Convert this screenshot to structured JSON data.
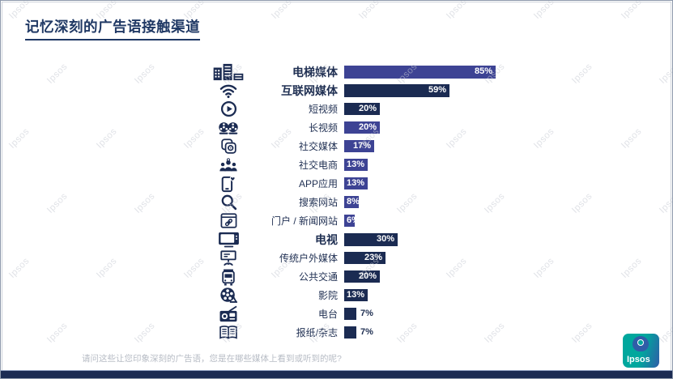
{
  "slide": {
    "title": "记忆深刻的广告语接触渠道",
    "footnote": "请问这些让您印象深刻的广告语，您是在哪些媒体上看到或听到的呢?",
    "watermark_text": "Ipsos",
    "logo_text": "Ipsos"
  },
  "colors": {
    "navy": "#1B2B52",
    "indigo": "#3D4394",
    "title": "#1F3864",
    "label": "#1F2F52",
    "bar_value_text": "#FFFFFF",
    "footnote": "#B7BCC5",
    "watermark": "#C7CBD4",
    "logo_teal": "#00A79D",
    "logo_blue": "#2F5DA8"
  },
  "chart_data": {
    "type": "bar",
    "orientation": "horizontal",
    "title": "记忆深刻的广告语接触渠道",
    "value_unit": "%",
    "xlim": [
      0,
      100
    ],
    "grid": false,
    "legend": false,
    "categories": [
      "电梯媒体",
      "互联网媒体",
      "短视频",
      "长视频",
      "社交媒体",
      "社交电商",
      "APP应用",
      "搜索网站",
      "门户 / 新闻网站",
      "电视",
      "传统户外媒体",
      "公共交通",
      "影院",
      "电台",
      "报纸/杂志"
    ],
    "values": [
      85,
      59,
      20,
      20,
      17,
      13,
      13,
      8,
      6,
      30,
      23,
      20,
      13,
      7,
      7
    ],
    "rows": [
      {
        "label": "电梯媒体",
        "value": 85,
        "value_label": "85%",
        "bold": true,
        "color": "indigo",
        "icon": "buildings-icon",
        "value_inside": true
      },
      {
        "label": "互联网媒体",
        "value": 59,
        "value_label": "59%",
        "bold": true,
        "color": "navy",
        "icon": "wifi-icon",
        "value_inside": true
      },
      {
        "label": "短视频",
        "value": 20,
        "value_label": "20%",
        "bold": false,
        "color": "navy",
        "icon": "play-icon",
        "value_inside": true
      },
      {
        "label": "长视频",
        "value": 20,
        "value_label": "20%",
        "bold": false,
        "color": "indigo",
        "icon": "film-reels-icon",
        "value_inside": true
      },
      {
        "label": "社交媒体",
        "value": 17,
        "value_label": "17%",
        "bold": false,
        "color": "indigo",
        "icon": "social-apps-icon",
        "value_inside": true
      },
      {
        "label": "社交电商",
        "value": 13,
        "value_label": "13%",
        "bold": false,
        "color": "indigo",
        "icon": "people-group-icon",
        "value_inside": true
      },
      {
        "label": "APP应用",
        "value": 13,
        "value_label": "13%",
        "bold": false,
        "color": "indigo",
        "icon": "phone-heart-icon",
        "value_inside": true
      },
      {
        "label": "搜索网站",
        "value": 8,
        "value_label": "8%",
        "bold": false,
        "color": "indigo",
        "icon": "search-icon",
        "value_inside": true
      },
      {
        "label": "门户 / 新闻网站",
        "value": 6,
        "value_label": "6%",
        "bold": false,
        "color": "indigo",
        "icon": "browser-link-icon",
        "value_inside": true
      },
      {
        "label": "电视",
        "value": 30,
        "value_label": "30%",
        "bold": true,
        "color": "navy",
        "icon": "tv-icon",
        "value_inside": true
      },
      {
        "label": "传统户外媒体",
        "value": 23,
        "value_label": "23%",
        "bold": false,
        "color": "navy",
        "icon": "billboard-icon",
        "value_inside": true
      },
      {
        "label": "公共交通",
        "value": 20,
        "value_label": "20%",
        "bold": false,
        "color": "navy",
        "icon": "bus-icon",
        "value_inside": true
      },
      {
        "label": "影院",
        "value": 13,
        "value_label": "13%",
        "bold": false,
        "color": "navy",
        "icon": "film-reel-icon",
        "value_inside": true
      },
      {
        "label": "电台",
        "value": 7,
        "value_label": "7%",
        "bold": false,
        "color": "navy",
        "icon": "radio-icon",
        "value_inside": false
      },
      {
        "label": "报纸/杂志",
        "value": 7,
        "value_label": "7%",
        "bold": false,
        "color": "navy",
        "icon": "newspaper-icon",
        "value_inside": false
      }
    ]
  }
}
